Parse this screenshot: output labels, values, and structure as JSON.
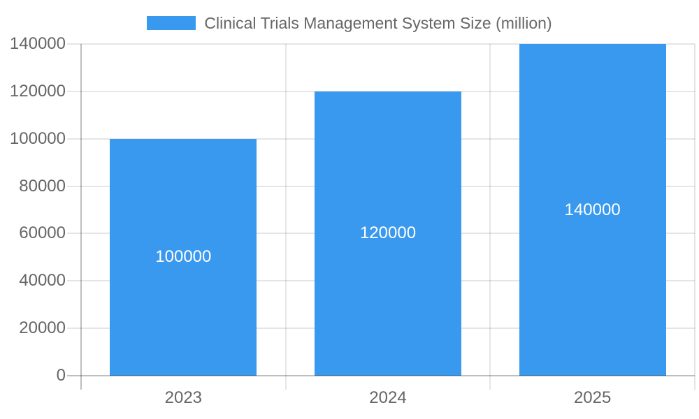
{
  "chart_data": {
    "type": "bar",
    "categories": [
      "2023",
      "2024",
      "2025"
    ],
    "series": [
      {
        "name": "Clinical Trials Management System Size (million)",
        "values": [
          100000,
          120000,
          140000
        ]
      }
    ],
    "data_labels": [
      "100000",
      "120000",
      "140000"
    ],
    "title": "",
    "xlabel": "",
    "ylabel": "",
    "ylim": [
      0,
      140000
    ],
    "ytick_step": 20000,
    "yticks": [
      0,
      20000,
      40000,
      60000,
      80000,
      100000,
      120000,
      140000
    ],
    "legend_position": "top-center",
    "grid": true,
    "colors": {
      "bar": "#3999ee",
      "axis_text": "#666666",
      "gridline": "rgba(0,0,0,0.10)",
      "zero_line": "rgba(0,0,0,0.25)",
      "data_label": "#ffffff",
      "background": "#ffffff"
    }
  }
}
